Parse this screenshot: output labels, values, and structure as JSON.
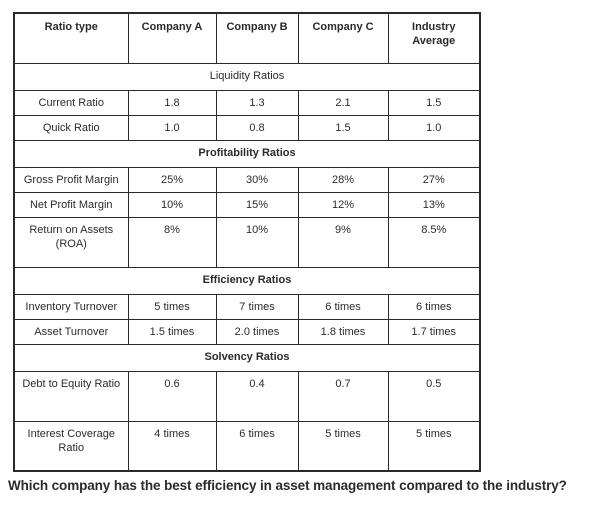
{
  "table": {
    "headers": [
      "Ratio type",
      "Company A",
      "Company B",
      "Company C",
      "Industry Average"
    ],
    "sections": [
      {
        "title": "Liquidity Ratios",
        "rows": [
          {
            "cells": [
              "Current Ratio",
              "1.8",
              "1.3",
              "2.1",
              "1.5"
            ]
          },
          {
            "cells": [
              "Quick Ratio",
              "1.0",
              "0.8",
              "1.5",
              "1.0"
            ]
          }
        ]
      },
      {
        "title": "Profitability Ratios",
        "rows": [
          {
            "cells": [
              "Gross Profit Margin",
              "25%",
              "30%",
              "28%",
              "27%"
            ]
          },
          {
            "cells": [
              "Net Profit Margin",
              "10%",
              "15%",
              "12%",
              "13%"
            ]
          },
          {
            "cells": [
              "Return on Assets (ROA)",
              "8%",
              "10%",
              "9%",
              "8.5%"
            ]
          }
        ]
      },
      {
        "title": "Efficiency Ratios",
        "rows": [
          {
            "cells": [
              "Inventory Turnover",
              "5 times",
              "7 times",
              "6 times",
              "6 times"
            ]
          },
          {
            "cells": [
              "Asset Turnover",
              "1.5 times",
              "2.0 times",
              "1.8 times",
              "1.7 times"
            ]
          }
        ]
      },
      {
        "title": "Solvency Ratios",
        "rows": [
          {
            "cells": [
              "Debt to Equity Ratio",
              "0.6",
              "0.4",
              "0.7",
              "0.5"
            ]
          },
          {
            "cells": [
              "Interest Coverage Ratio",
              "4 times",
              "6 times",
              "5 times",
              "5 times"
            ]
          }
        ]
      }
    ]
  },
  "question": "Which company has the best efficiency in asset management compared to the industry?",
  "colors": {
    "border": "#2a2a2a",
    "text": "#2b2b2b",
    "background": "#ffffff"
  }
}
